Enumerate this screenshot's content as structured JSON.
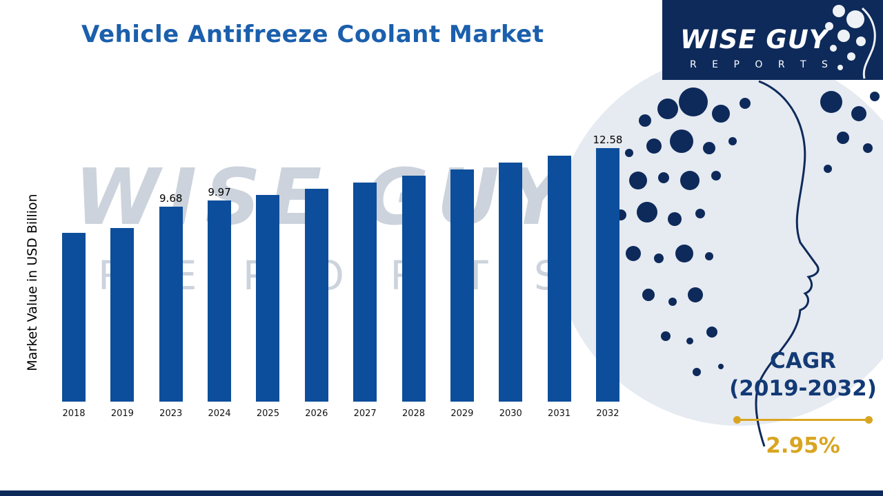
{
  "title": "Vehicle Antifreeze Coolant Market",
  "brand": {
    "line1": "WISE GUY",
    "line2": "R E P O R T S"
  },
  "watermark": {
    "line1": "WISE GUY",
    "line2": "R E P O R T S"
  },
  "chart_data": {
    "type": "bar",
    "title": "Vehicle Antifreeze Coolant Market",
    "xlabel": "",
    "ylabel": "Market Value in USD Billion",
    "categories": [
      "2018",
      "2019",
      "2023",
      "2024",
      "2025",
      "2026",
      "2027",
      "2028",
      "2029",
      "2030",
      "2031",
      "2032"
    ],
    "values": [
      8.38,
      8.62,
      9.68,
      9.97,
      10.26,
      10.57,
      10.88,
      11.2,
      11.53,
      11.87,
      12.22,
      12.58
    ],
    "data_labels": {
      "2023": "9.68",
      "2024": "9.97",
      "2032": "12.58"
    },
    "ylim": [
      0,
      13.2
    ],
    "grid": false,
    "legend": false,
    "bar_color": "#0c4e9b"
  },
  "cagr": {
    "line1": "CAGR",
    "line2": "(2019-2032)",
    "value": "2.95%"
  },
  "colors": {
    "title": "#1b5fad",
    "bar": "#0c4e9b",
    "navy": "#0d2a5a",
    "gold": "#d9a521",
    "watermark": "#ccd3dc",
    "circle": "#e6eaf1"
  }
}
